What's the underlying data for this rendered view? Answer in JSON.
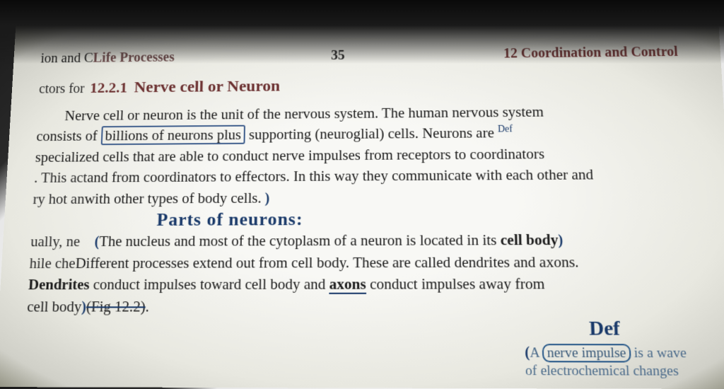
{
  "header": {
    "left_cut": "ion and C",
    "left_title": "Life Processes",
    "page_number": "35",
    "right_title": "12 Coordination and Control"
  },
  "section": {
    "left_cut": "ctors for",
    "number": "12.2.1",
    "title": "Nerve cell or Neuron"
  },
  "para1": {
    "line1_pre": "Nerve cell or neuron is the unit of the nervous system. The human nervous system",
    "line2_pre": "consists of ",
    "boxed": "billions of neurons plus",
    "line2_post": " supporting (neuroglial) cells. Neurons are",
    "annotation": "Def",
    "line3": "specialized cells that are able to conduct nerve impulses from receptors to coordinators",
    "cut4": ". This act",
    "line4": "and from coordinators to effectors. In this way they communicate with each other and",
    "cut5": "ry hot an",
    "line5": "with other types of body cells."
  },
  "handwritten_heading": "Parts of neurons:",
  "para2": {
    "cut1": "ually, ne",
    "cut2": "hile   che",
    "line1": "The nucleus and most of the cytoplasm of a neuron is located in its ",
    "bold1": "cell body",
    "line2": "Different processes extend out from cell body. These are called dendrites and axons.",
    "line3_pre": "Dendrites",
    "line3_mid": " conduct impulses toward cell body and ",
    "line3_bold": "axons",
    "line3_post": " conduct impulses away from",
    "line4_pre": "cell body",
    "fig": "(Fig 12.2)",
    "line4_post": "."
  },
  "def": {
    "title": "Def",
    "line1_pre": "A ",
    "boxed": "nerve impulse",
    "line1_post": " is a wave",
    "line2": "of electrochemical changes"
  },
  "colors": {
    "heading": "#6b3030",
    "pen": "#1a3a6a",
    "text": "#1a1a1a",
    "faded": "#4a6a8a"
  }
}
